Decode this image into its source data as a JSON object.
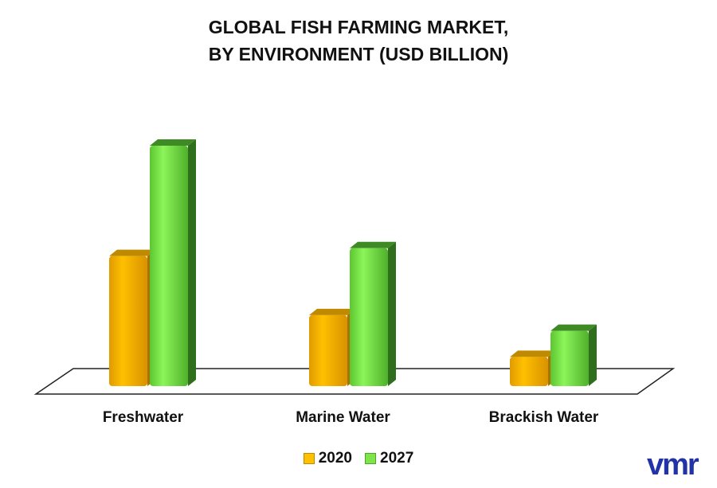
{
  "chart_data": {
    "type": "bar",
    "title": "GLOBAL FISH FARMING MARKET,",
    "subtitle": "BY ENVIRONMENT (USD BILLION)",
    "categories": [
      "Freshwater",
      "Marine Water",
      "Brackish Water"
    ],
    "series": [
      {
        "name": "2020",
        "values": [
          165,
          90,
          37
        ],
        "color": "#FFC000"
      },
      {
        "name": "2027",
        "values": [
          305,
          175,
          70
        ],
        "color": "#7FE34A"
      }
    ],
    "ylim": [
      0,
      330
    ],
    "grid": false,
    "legend_position": "bottom"
  },
  "branding": {
    "logo": "vmr"
  }
}
